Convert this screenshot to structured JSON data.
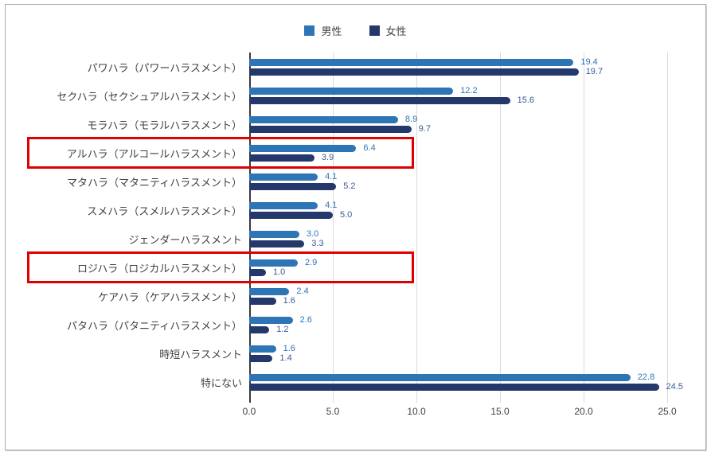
{
  "chart_data": {
    "type": "bar",
    "orientation": "horizontal",
    "title": "",
    "xlabel": "",
    "ylabel": "",
    "xlim": [
      0,
      26.7
    ],
    "x_ticks": [
      "0.0",
      "5.0",
      "10.0",
      "15.0",
      "20.0",
      "25.0"
    ],
    "x_tick_values": [
      0,
      5,
      10,
      15,
      20,
      25
    ],
    "grid": true,
    "legend_position": "top",
    "categories": [
      "パワハラ（パワーハラスメント）",
      "セクハラ（セクシュアルハラスメント）",
      "モラハラ（モラルハラスメント）",
      "アルハラ（アルコールハラスメント）",
      "マタハラ（マタニティハラスメント）",
      "スメハラ（スメルハラスメント）",
      "ジェンダーハラスメント",
      "ロジハラ（ロジカルハラスメント）",
      "ケアハラ（ケアハラスメント）",
      "パタハラ（パタニティハラスメント）",
      "時短ハラスメント",
      "特にない"
    ],
    "series": [
      {
        "name": "男性",
        "color": "#2E75B6",
        "label_color": "#2E75B6",
        "values": [
          19.4,
          12.2,
          8.9,
          6.4,
          4.1,
          4.1,
          3.0,
          2.9,
          2.4,
          2.6,
          1.6,
          22.8
        ]
      },
      {
        "name": "女性",
        "color": "#24386B",
        "label_color": "#3D5A96",
        "values": [
          19.7,
          15.6,
          9.7,
          3.9,
          5.2,
          5.0,
          3.3,
          1.0,
          1.6,
          1.2,
          1.4,
          24.5
        ]
      }
    ],
    "highlighted_rows": [
      3,
      7
    ],
    "highlight_color": "#e00000"
  },
  "style": {
    "grid_color": "#d9d9d9",
    "zero_line_color": "#3a3a3a",
    "text_color": "#404040"
  }
}
